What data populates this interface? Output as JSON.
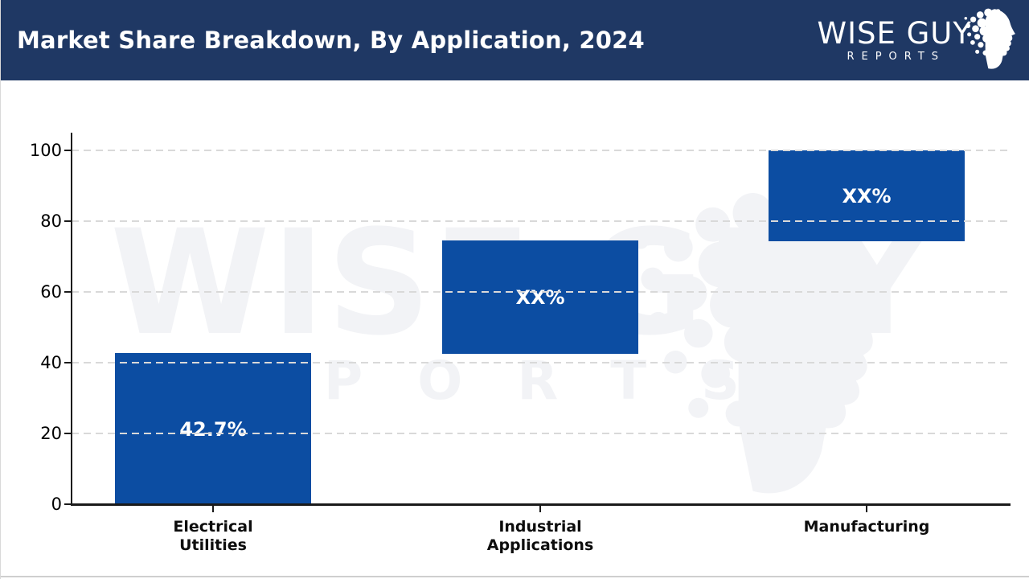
{
  "header": {
    "bg_color": "#1f3864",
    "title": "Market Share Breakdown, By Application, 2024",
    "logo": {
      "brand_line1": "WISE GUY",
      "brand_line2": "REPORTS",
      "icon": "dotted-head-profile"
    }
  },
  "watermark": {
    "line1": "WISE GUY",
    "line2": "REPORTS",
    "icon": "dotted-head-profile",
    "color": "#f2f3f6"
  },
  "chart_data": {
    "type": "bar",
    "variant": "waterfall",
    "title": "Market Share Breakdown, By Application, 2024",
    "categories": [
      "Electrical Utilities",
      "Industrial Applications",
      "Manufacturing"
    ],
    "category_label_lines": [
      [
        "Electrical",
        "Utilities"
      ],
      [
        "Industrial",
        "Applications"
      ],
      [
        "Manufacturing"
      ]
    ],
    "segments": [
      {
        "category": "Electrical Utilities",
        "start": 0,
        "end": 42.7,
        "label": "42.7%"
      },
      {
        "category": "Industrial Applications",
        "start": 42.7,
        "end": 74.5,
        "label": "XX%"
      },
      {
        "category": "Manufacturing",
        "start": 74.5,
        "end": 100,
        "label": "XX%"
      }
    ],
    "segment_sizes": [
      42.7,
      31.8,
      25.5
    ],
    "ylim": [
      0,
      104
    ],
    "yticks": [
      0,
      20,
      40,
      60,
      80,
      100
    ],
    "grid": {
      "axis": "y",
      "style": "dashed",
      "color": "#d9d9d9",
      "drawn_over_bars": true
    },
    "bar_color": "#0c4da2",
    "bar_label_color": "#ffffff",
    "axis_color": "#1a1a1a",
    "tick_label_color": "#000000",
    "legend": "none"
  }
}
